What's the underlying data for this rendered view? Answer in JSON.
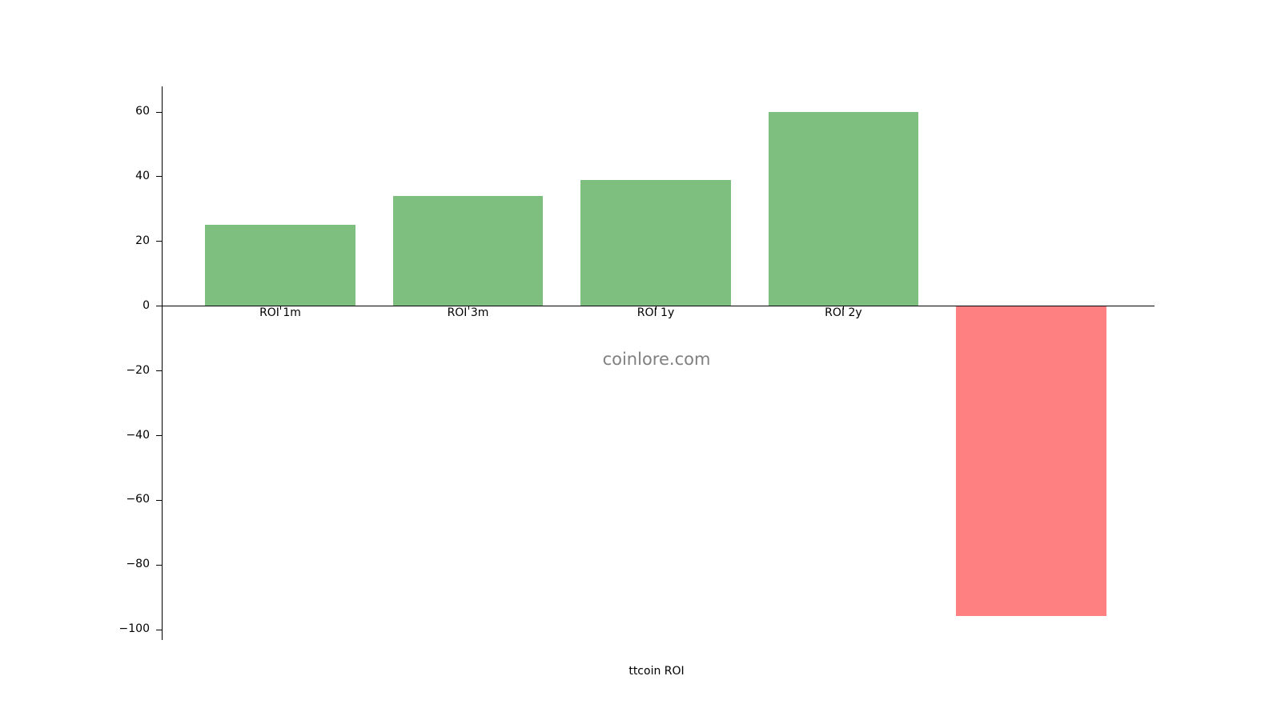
{
  "chart_data": {
    "type": "bar",
    "title": "",
    "xlabel": "ttcoin ROI",
    "ylabel": "",
    "watermark": "coinlore.com",
    "categories": [
      "ROI 1m",
      "ROI 3m",
      "ROI 1y",
      "ROI 2y",
      ""
    ],
    "values": [
      25,
      34,
      39,
      60,
      -96
    ],
    "bar_names": [
      "bar-roi-1m",
      "bar-roi-3m",
      "bar-roi-1y",
      "bar-roi-2y",
      "bar-unlabeled-negative"
    ],
    "positive_color": "#7ebe7e",
    "negative_color": "#ff8080",
    "bar_width": 0.8,
    "xlim": [
      -0.631,
      4.657
    ],
    "ylim": [
      -103.3,
      67.8
    ],
    "yticks": [
      60,
      40,
      20,
      0,
      -20,
      -40,
      -60,
      -80,
      -100
    ],
    "ytick_labels": [
      "60",
      "40",
      "20",
      "0",
      "−20",
      "−40",
      "−60",
      "−80",
      "−100"
    ],
    "grid": false,
    "legend": "none",
    "axis_color": "#000000",
    "text_color": "#000000",
    "watermark_color": "#808080",
    "background": "#ffffff"
  }
}
